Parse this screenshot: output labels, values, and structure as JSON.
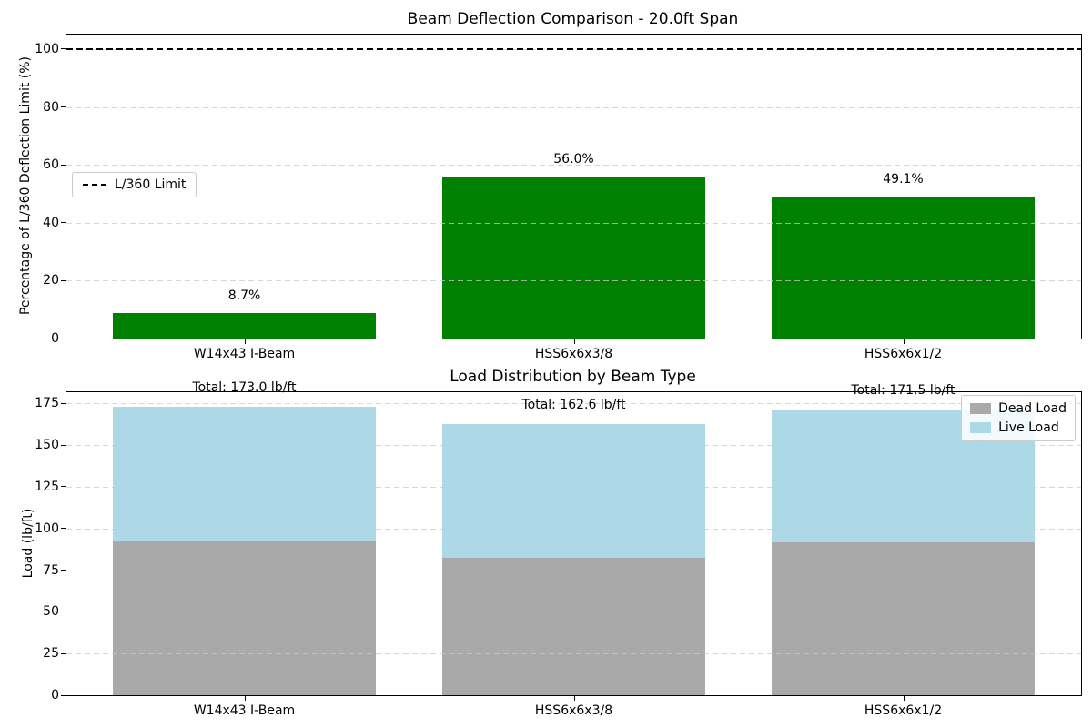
{
  "figure": {
    "background": "#ffffff"
  },
  "chart_data": [
    {
      "type": "bar",
      "title": "Beam Deflection Comparison - 20.0ft Span",
      "xlabel": "",
      "ylabel": "Percentage of L/360 Deflection Limit (%)",
      "categories": [
        "W14x43 I-Beam",
        "HSS6x6x3/8",
        "HSS6x6x1/2"
      ],
      "values": [
        8.7,
        56.0,
        49.1
      ],
      "bar_labels": [
        "8.7%",
        "56.0%",
        "49.1%"
      ],
      "bar_color": "#008000",
      "ylim": [
        0,
        105
      ],
      "yticks": [
        0,
        20,
        40,
        60,
        80,
        100
      ],
      "grid": true,
      "legend_position": "center-left",
      "reference_line": {
        "value": 100,
        "color": "#000000",
        "style": "dashed",
        "label": "L/360 Limit"
      }
    },
    {
      "type": "stacked-bar",
      "title": "Load Distribution by Beam Type",
      "xlabel": "",
      "ylabel": "Load (lb/ft)",
      "categories": [
        "W14x43 I-Beam",
        "HSS6x6x3/8",
        "HSS6x6x1/2"
      ],
      "series": [
        {
          "name": "Dead Load",
          "color": "#a9a9a9",
          "values": [
            93.0,
            82.6,
            91.5
          ]
        },
        {
          "name": "Live Load",
          "color": "#add8e6",
          "values": [
            80.0,
            80.0,
            80.0
          ]
        }
      ],
      "totals": [
        173.0,
        162.6,
        171.5
      ],
      "total_labels": [
        "Total: 173.0 lb/ft",
        "Total: 162.6 lb/ft",
        "Total: 171.5 lb/ft"
      ],
      "ylim": [
        0,
        181.65
      ],
      "yticks": [
        0,
        25,
        50,
        75,
        100,
        125,
        150,
        175
      ],
      "grid": true,
      "legend_position": "top-right"
    }
  ]
}
